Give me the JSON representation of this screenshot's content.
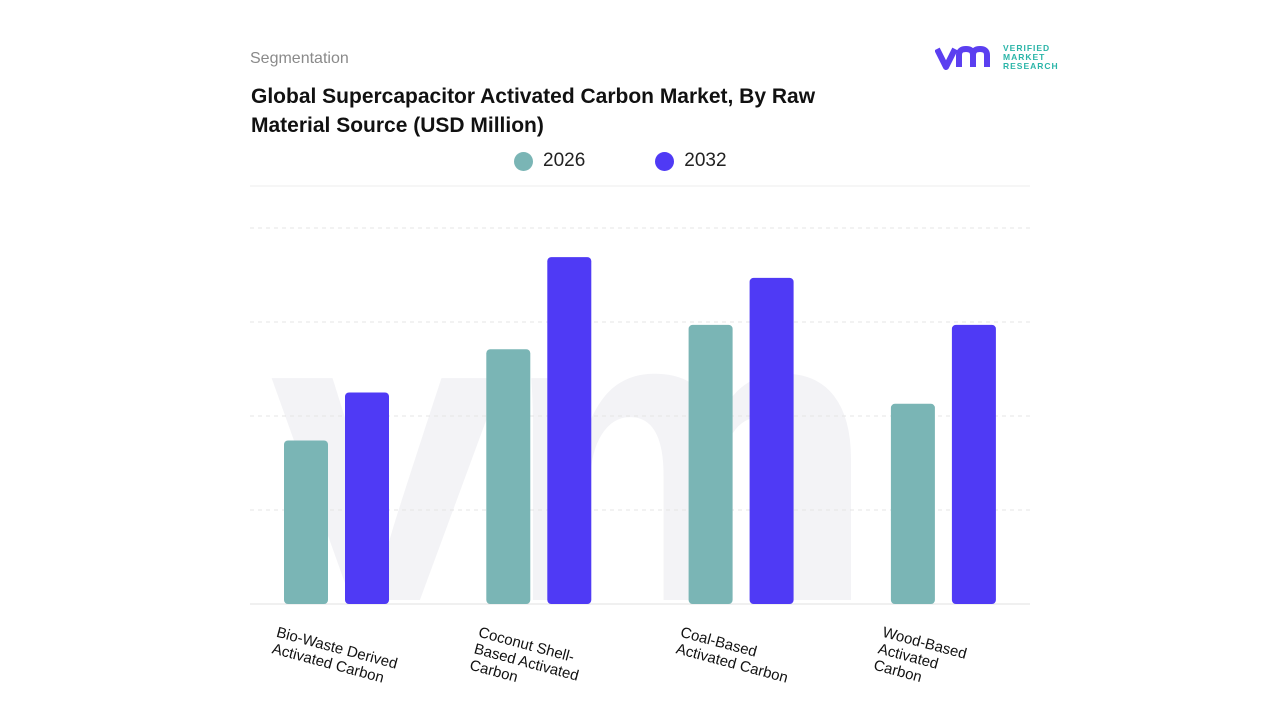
{
  "header": {
    "segment_label": "Segmentation",
    "title": "Global Supercapacitor Activated Carbon Market, By Raw Material Source (USD Million)"
  },
  "logo": {
    "text_lines": [
      "VERIFIED",
      "MARKET",
      "RESEARCH"
    ],
    "colors": {
      "mark": "#5b3ff0",
      "text": "#2bb5a8"
    }
  },
  "chart_data": {
    "type": "bar",
    "title": "Global Supercapacitor Activated Carbon Market, By Raw Material Source (USD Million)",
    "categories": [
      "Bio-Waste Derived Activated Carbon",
      "Coconut Shell-Based Activated Carbon",
      "Coal-Based Activated Carbon",
      "Wood-Based Activated Carbon"
    ],
    "category_label_lines": [
      [
        "Bio-Waste Derived",
        "Activated Carbon"
      ],
      [
        "Coconut Shell-",
        "Based Activated",
        "Carbon"
      ],
      [
        "Coal-Based",
        "Activated Carbon"
      ],
      [
        "Wood-Based",
        "Activated",
        "Carbon"
      ]
    ],
    "series": [
      {
        "name": "2026",
        "color": "#7ab5b5",
        "values": [
          1.74,
          2.71,
          2.97,
          2.13
        ]
      },
      {
        "name": "2032",
        "color": "#4f3af5",
        "values": [
          2.25,
          3.69,
          3.47,
          2.97
        ]
      }
    ],
    "ylim": [
      0,
      4
    ],
    "grid": true,
    "y_tick_labels_shown": false,
    "legend_position": "top"
  }
}
